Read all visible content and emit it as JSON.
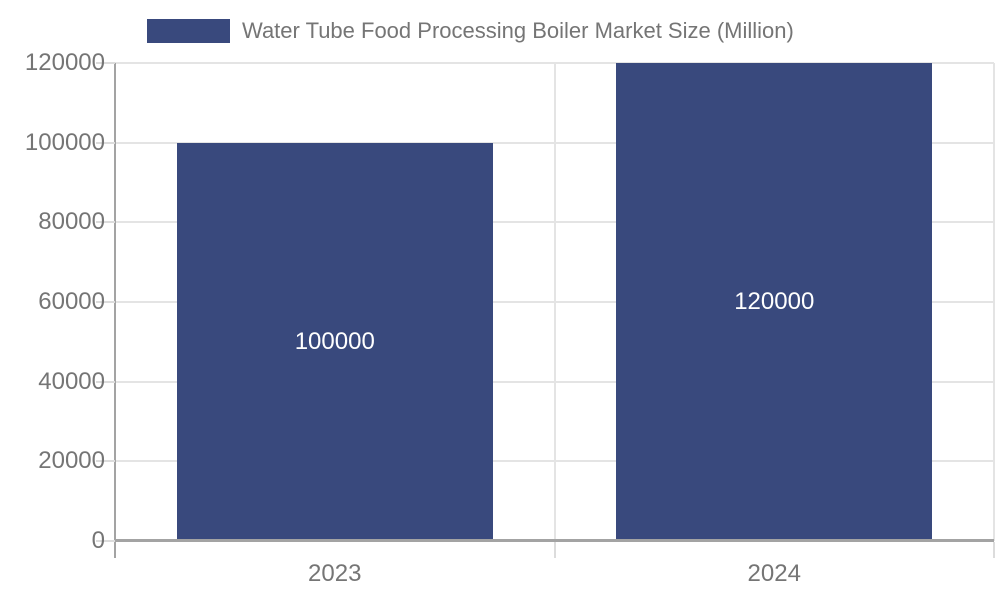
{
  "legend": {
    "label": "Water Tube Food Processing Boiler Market Size (Million)"
  },
  "chart_data": {
    "type": "bar",
    "title": "Water Tube Food Processing Boiler Market Size (Million)",
    "categories": [
      "2023",
      "2024"
    ],
    "series": [
      {
        "name": "Water Tube Food Processing Boiler Market Size (Million)",
        "values": [
          100000,
          120000
        ]
      }
    ],
    "bar_labels": [
      "100000",
      "120000"
    ],
    "xlabel": "",
    "ylabel": "",
    "ylim": [
      0,
      120000
    ],
    "yticks": [
      0,
      20000,
      40000,
      60000,
      80000,
      100000,
      120000
    ],
    "grid": true,
    "legend_position": "top-left",
    "colors": {
      "bar": "#39497D",
      "grid": "#E4E4E4",
      "axis": "#A3A3A3",
      "tick": "#DCDCDC",
      "axis_text": "#757575",
      "bar_label_text": "#FFFFFF",
      "background": "#FFFFFF"
    }
  }
}
